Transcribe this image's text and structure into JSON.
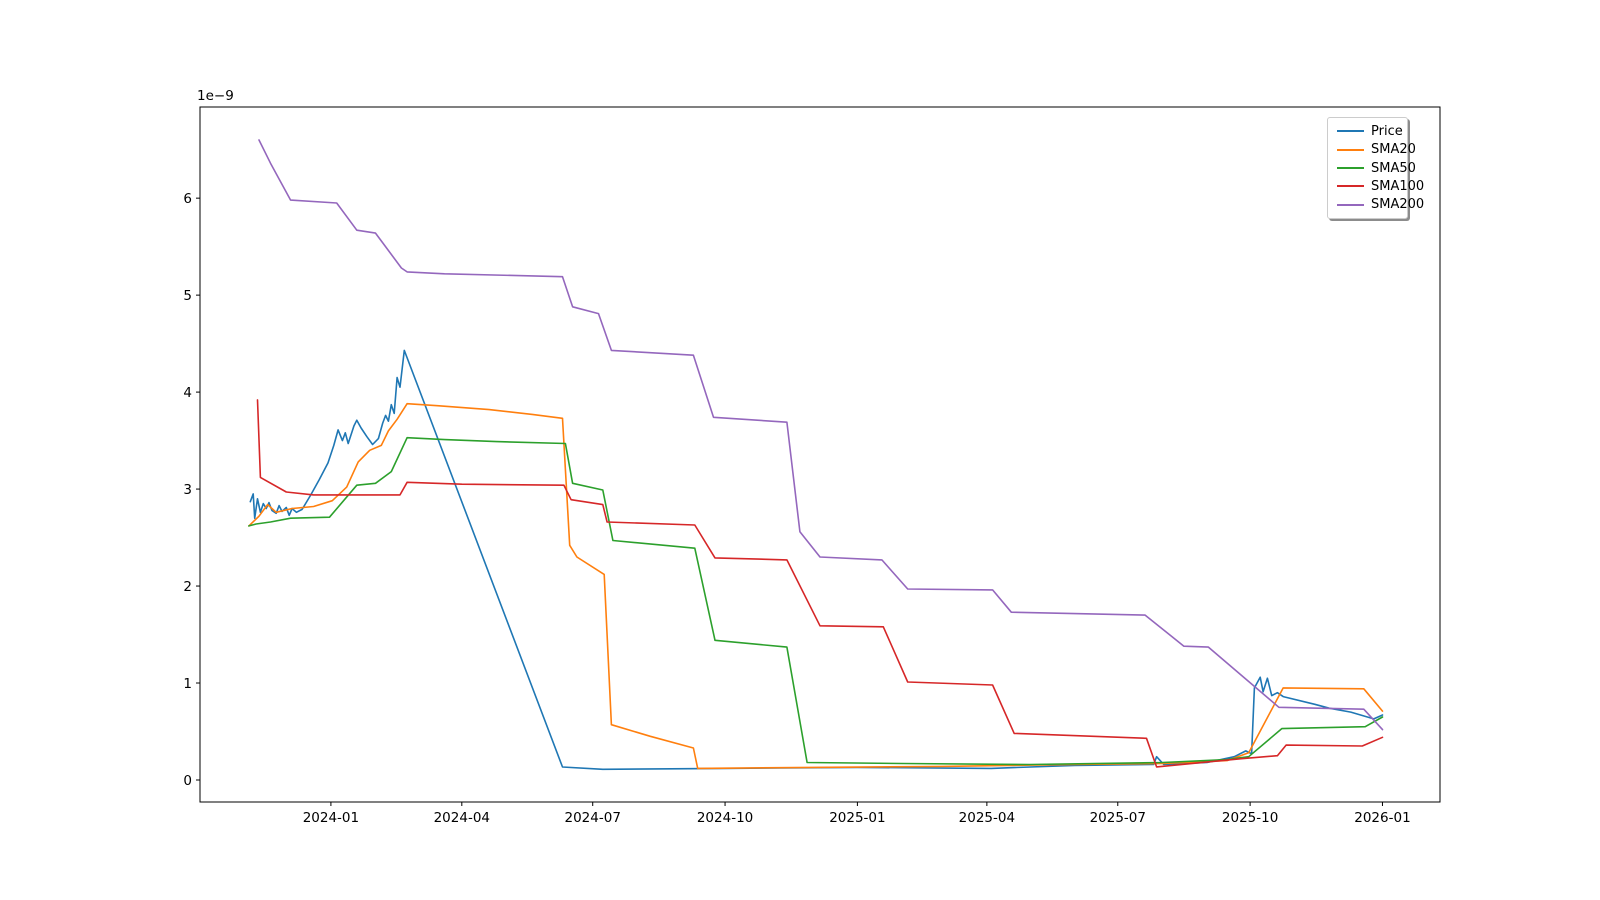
{
  "figure": {
    "background": "#ffffff"
  },
  "axes": {
    "offset_text": "1e−9",
    "y_ticks": [
      {
        "value": 0,
        "label": "0"
      },
      {
        "value": 1,
        "label": "1"
      },
      {
        "value": 2,
        "label": "2"
      },
      {
        "value": 3,
        "label": "3"
      },
      {
        "value": 4,
        "label": "4"
      },
      {
        "value": 5,
        "label": "5"
      },
      {
        "value": 6,
        "label": "6"
      }
    ],
    "x_ticks": [
      {
        "date": "2024-01-01",
        "label": "2024-01"
      },
      {
        "date": "2024-04-01",
        "label": "2024-04"
      },
      {
        "date": "2024-07-01",
        "label": "2024-07"
      },
      {
        "date": "2024-10-01",
        "label": "2024-10"
      },
      {
        "date": "2025-01-01",
        "label": "2025-01"
      },
      {
        "date": "2025-04-01",
        "label": "2025-04"
      },
      {
        "date": "2025-07-01",
        "label": "2025-07"
      },
      {
        "date": "2025-10-01",
        "label": "2025-10"
      },
      {
        "date": "2026-01-01",
        "label": "2026-01"
      }
    ]
  },
  "chart_data": {
    "type": "line",
    "title": "",
    "xlabel": "",
    "ylabel": "",
    "grid": false,
    "legend_position": "upper right",
    "y_unit_multiplier": "1e-9",
    "xlim": [
      "2023-10-02",
      "2026-02-10"
    ],
    "ylim_1e9": [
      -0.227,
      6.94
    ],
    "series": [
      {
        "name": "Price",
        "color": "#1f77b4",
        "points": [
          [
            "2023-11-06",
            2.87
          ],
          [
            "2023-11-08",
            2.95
          ],
          [
            "2023-11-09",
            2.7
          ],
          [
            "2023-11-11",
            2.9
          ],
          [
            "2023-11-13",
            2.76
          ],
          [
            "2023-11-15",
            2.85
          ],
          [
            "2023-11-17",
            2.8
          ],
          [
            "2023-11-19",
            2.86
          ],
          [
            "2023-11-21",
            2.78
          ],
          [
            "2023-11-24",
            2.75
          ],
          [
            "2023-11-26",
            2.83
          ],
          [
            "2023-11-28",
            2.77
          ],
          [
            "2023-12-01",
            2.81
          ],
          [
            "2023-12-03",
            2.73
          ],
          [
            "2023-12-05",
            2.8
          ],
          [
            "2023-12-08",
            2.76
          ],
          [
            "2023-12-12",
            2.79
          ],
          [
            "2023-12-18",
            2.94
          ],
          [
            "2023-12-24",
            3.1
          ],
          [
            "2023-12-30",
            3.27
          ],
          [
            "2024-01-03",
            3.45
          ],
          [
            "2024-01-06",
            3.61
          ],
          [
            "2024-01-09",
            3.5
          ],
          [
            "2024-01-11",
            3.58
          ],
          [
            "2024-01-13",
            3.47
          ],
          [
            "2024-01-17",
            3.65
          ],
          [
            "2024-01-19",
            3.71
          ],
          [
            "2024-01-22",
            3.63
          ],
          [
            "2024-01-26",
            3.54
          ],
          [
            "2024-01-30",
            3.46
          ],
          [
            "2024-02-03",
            3.52
          ],
          [
            "2024-02-06",
            3.68
          ],
          [
            "2024-02-08",
            3.76
          ],
          [
            "2024-02-10",
            3.7
          ],
          [
            "2024-02-12",
            3.87
          ],
          [
            "2024-02-14",
            3.78
          ],
          [
            "2024-02-16",
            4.15
          ],
          [
            "2024-02-18",
            4.05
          ],
          [
            "2024-02-21",
            4.43
          ],
          [
            "2024-06-10",
            0.134
          ],
          [
            "2024-07-08",
            0.11
          ],
          [
            "2024-10-01",
            0.12
          ],
          [
            "2025-01-01",
            0.13
          ],
          [
            "2025-04-04",
            0.12
          ],
          [
            "2025-06-01",
            0.15
          ],
          [
            "2025-07-26",
            0.16
          ],
          [
            "2025-07-28",
            0.24
          ],
          [
            "2025-08-02",
            0.16
          ],
          [
            "2025-09-01",
            0.18
          ],
          [
            "2025-09-20",
            0.24
          ],
          [
            "2025-09-28",
            0.3
          ],
          [
            "2025-10-02",
            0.27
          ],
          [
            "2025-10-04",
            0.95
          ],
          [
            "2025-10-08",
            1.06
          ],
          [
            "2025-10-10",
            0.91
          ],
          [
            "2025-10-13",
            1.05
          ],
          [
            "2025-10-16",
            0.87
          ],
          [
            "2025-10-20",
            0.9
          ],
          [
            "2025-10-24",
            0.86
          ],
          [
            "2025-11-15",
            0.78
          ],
          [
            "2025-11-25",
            0.74
          ],
          [
            "2025-12-10",
            0.7
          ],
          [
            "2025-12-26",
            0.63
          ],
          [
            "2026-01-01",
            0.67
          ]
        ]
      },
      {
        "name": "SMA20",
        "color": "#ff7f0e",
        "points": [
          [
            "2023-11-05",
            2.62
          ],
          [
            "2023-11-12",
            2.72
          ],
          [
            "2023-11-18",
            2.84
          ],
          [
            "2023-11-24",
            2.76
          ],
          [
            "2023-12-05",
            2.8
          ],
          [
            "2023-12-20",
            2.82
          ],
          [
            "2024-01-02",
            2.88
          ],
          [
            "2024-01-12",
            3.02
          ],
          [
            "2024-01-20",
            3.28
          ],
          [
            "2024-01-28",
            3.4
          ],
          [
            "2024-02-05",
            3.45
          ],
          [
            "2024-02-10",
            3.6
          ],
          [
            "2024-02-16",
            3.72
          ],
          [
            "2024-02-23",
            3.88
          ],
          [
            "2024-03-15",
            3.86
          ],
          [
            "2024-04-20",
            3.82
          ],
          [
            "2024-05-20",
            3.77
          ],
          [
            "2024-06-10",
            3.73
          ],
          [
            "2024-06-15",
            2.42
          ],
          [
            "2024-06-20",
            2.3
          ],
          [
            "2024-07-09",
            2.12
          ],
          [
            "2024-07-14",
            0.57
          ],
          [
            "2024-08-10",
            0.45
          ],
          [
            "2024-09-09",
            0.33
          ],
          [
            "2024-09-12",
            0.12
          ],
          [
            "2024-12-01",
            0.13
          ],
          [
            "2025-03-01",
            0.14
          ],
          [
            "2025-06-01",
            0.16
          ],
          [
            "2025-08-01",
            0.17
          ],
          [
            "2025-09-15",
            0.2
          ],
          [
            "2025-09-30",
            0.28
          ],
          [
            "2025-10-24",
            0.95
          ],
          [
            "2025-12-19",
            0.94
          ],
          [
            "2026-01-01",
            0.71
          ]
        ]
      },
      {
        "name": "SMA50",
        "color": "#2ca02c",
        "points": [
          [
            "2023-11-05",
            2.62
          ],
          [
            "2023-11-10",
            2.64
          ],
          [
            "2023-11-20",
            2.66
          ],
          [
            "2023-12-04",
            2.7
          ],
          [
            "2023-12-31",
            2.71
          ],
          [
            "2024-01-19",
            3.04
          ],
          [
            "2024-02-01",
            3.06
          ],
          [
            "2024-02-12",
            3.18
          ],
          [
            "2024-02-23",
            3.53
          ],
          [
            "2024-03-20",
            3.51
          ],
          [
            "2024-04-25",
            3.49
          ],
          [
            "2024-06-12",
            3.47
          ],
          [
            "2024-06-17",
            3.06
          ],
          [
            "2024-07-08",
            2.99
          ],
          [
            "2024-07-15",
            2.47
          ],
          [
            "2024-09-10",
            2.39
          ],
          [
            "2024-09-24",
            1.44
          ],
          [
            "2024-11-13",
            1.37
          ],
          [
            "2024-11-27",
            0.18
          ],
          [
            "2025-02-01",
            0.17
          ],
          [
            "2025-05-01",
            0.16
          ],
          [
            "2025-08-01",
            0.18
          ],
          [
            "2025-09-15",
            0.21
          ],
          [
            "2025-09-30",
            0.24
          ],
          [
            "2025-10-23",
            0.53
          ],
          [
            "2025-12-20",
            0.55
          ],
          [
            "2026-01-01",
            0.65
          ]
        ]
      },
      {
        "name": "SMA100",
        "color": "#d62728",
        "points": [
          [
            "2023-11-11",
            3.92
          ],
          [
            "2023-11-13",
            3.12
          ],
          [
            "2023-12-01",
            2.97
          ],
          [
            "2023-12-20",
            2.94
          ],
          [
            "2024-02-18",
            2.94
          ],
          [
            "2024-02-23",
            3.07
          ],
          [
            "2024-04-01",
            3.05
          ],
          [
            "2024-06-11",
            3.04
          ],
          [
            "2024-06-16",
            2.89
          ],
          [
            "2024-07-08",
            2.84
          ],
          [
            "2024-07-11",
            2.66
          ],
          [
            "2024-09-10",
            2.63
          ],
          [
            "2024-09-24",
            2.29
          ],
          [
            "2024-11-13",
            2.27
          ],
          [
            "2024-12-06",
            1.59
          ],
          [
            "2025-01-19",
            1.58
          ],
          [
            "2025-02-05",
            1.01
          ],
          [
            "2025-04-05",
            0.98
          ],
          [
            "2025-04-20",
            0.48
          ],
          [
            "2025-07-21",
            0.43
          ],
          [
            "2025-07-28",
            0.135
          ],
          [
            "2025-09-25",
            0.22
          ],
          [
            "2025-10-20",
            0.25
          ],
          [
            "2025-10-26",
            0.36
          ],
          [
            "2025-12-18",
            0.35
          ],
          [
            "2026-01-01",
            0.44
          ]
        ]
      },
      {
        "name": "SMA200",
        "color": "#9467bd",
        "points": [
          [
            "2023-11-12",
            6.6
          ],
          [
            "2023-11-20",
            6.36
          ],
          [
            "2023-12-04",
            5.98
          ],
          [
            "2024-01-05",
            5.95
          ],
          [
            "2024-01-19",
            5.67
          ],
          [
            "2024-02-01",
            5.64
          ],
          [
            "2024-02-19",
            5.28
          ],
          [
            "2024-02-23",
            5.24
          ],
          [
            "2024-03-20",
            5.22
          ],
          [
            "2024-06-10",
            5.19
          ],
          [
            "2024-06-17",
            4.88
          ],
          [
            "2024-07-05",
            4.81
          ],
          [
            "2024-07-14",
            4.43
          ],
          [
            "2024-09-09",
            4.38
          ],
          [
            "2024-09-23",
            3.74
          ],
          [
            "2024-11-13",
            3.69
          ],
          [
            "2024-11-22",
            2.56
          ],
          [
            "2024-12-06",
            2.3
          ],
          [
            "2025-01-18",
            2.27
          ],
          [
            "2025-02-05",
            1.97
          ],
          [
            "2025-04-05",
            1.96
          ],
          [
            "2025-04-18",
            1.73
          ],
          [
            "2025-07-20",
            1.7
          ],
          [
            "2025-08-16",
            1.38
          ],
          [
            "2025-09-02",
            1.37
          ],
          [
            "2025-10-21",
            0.75
          ],
          [
            "2025-12-19",
            0.73
          ],
          [
            "2026-01-01",
            0.52
          ]
        ]
      }
    ]
  }
}
